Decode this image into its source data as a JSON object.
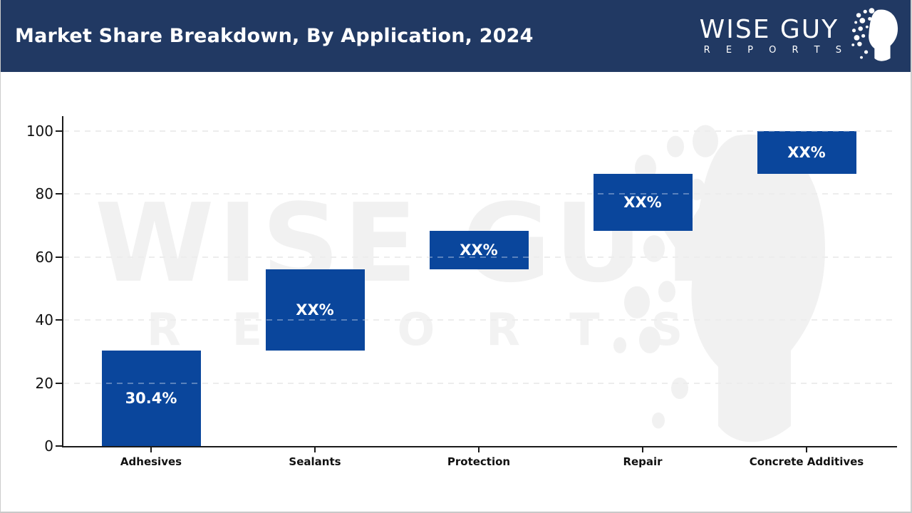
{
  "header": {
    "title": "Market Share Breakdown, By Application, 2024",
    "background": "#213963",
    "logo": {
      "name": "WISE GUY",
      "tagline": "R E P O R T S"
    }
  },
  "watermark": {
    "name": "WISE GUY",
    "tagline": "REPORTS"
  },
  "chart_data": {
    "type": "bar",
    "subtype": "waterfall",
    "title": "Market Share Breakdown, By Application, 2024",
    "categories": [
      "Adhesives",
      "Sealants",
      "Protection",
      "Repair",
      "Concrete Additives"
    ],
    "segments": [
      {
        "category": "Adhesives",
        "start": 0,
        "end": 30.4,
        "label": "30.4%"
      },
      {
        "category": "Sealants",
        "start": 30.4,
        "end": 56.2,
        "label": "XX%"
      },
      {
        "category": "Protection",
        "start": 56.2,
        "end": 68.4,
        "label": "XX%"
      },
      {
        "category": "Repair",
        "start": 68.4,
        "end": 86.5,
        "label": "XX%"
      },
      {
        "category": "Concrete Additives",
        "start": 86.5,
        "end": 100,
        "label": "XX%"
      }
    ],
    "y_ticks": [
      0,
      20,
      40,
      60,
      80,
      100
    ],
    "gridline_values": [
      20,
      40,
      60,
      80,
      100
    ],
    "ylim": [
      0,
      104.7
    ],
    "grid": true,
    "legend": false,
    "xlabel": "",
    "ylabel": "",
    "bar_color": "#0a469c",
    "bar_label_color": "#ffffff",
    "gridline_color": "#e4e4e4",
    "axis_color": "#1a1a1a"
  }
}
